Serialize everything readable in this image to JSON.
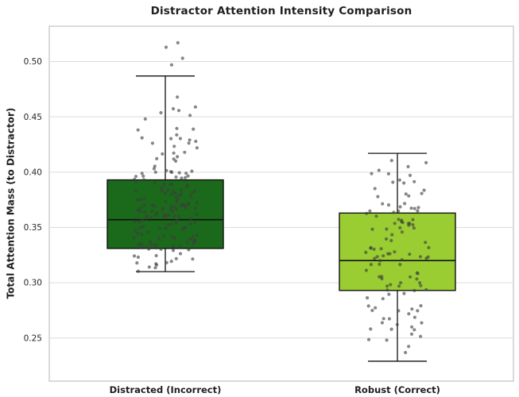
{
  "chart_data": {
    "type": "box",
    "title": "Distractor Attention Intensity Comparison",
    "ylabel": "Total Attention Mass (to Distractor)",
    "xlabel": "",
    "ylim": [
      0.211,
      0.532
    ],
    "yticks": [
      0.25,
      0.3,
      0.35,
      0.4,
      0.45,
      0.5
    ],
    "grid": true,
    "legend": "none",
    "categories": [
      "Distracted (Incorrect)",
      "Robust (Correct)"
    ],
    "series": [
      {
        "name": "Distracted (Incorrect)",
        "box_color": "#1b691b",
        "whisker_low": 0.31,
        "q1": 0.331,
        "median": 0.357,
        "q3": 0.393,
        "whisker_high": 0.487,
        "points": {
          "count": 170,
          "seed": 12345,
          "mean": 0.362,
          "std": 0.044,
          "min": 0.309,
          "max": 0.487,
          "extra": [
            0.517,
            0.513,
            0.503,
            0.497
          ]
        }
      },
      {
        "name": "Robust (Correct)",
        "box_color": "#9acd32",
        "whisker_low": 0.229,
        "q1": 0.293,
        "median": 0.32,
        "q3": 0.363,
        "whisker_high": 0.417,
        "points": {
          "count": 115,
          "seed": 99,
          "mean": 0.322,
          "std": 0.05,
          "min": 0.229,
          "max": 0.417,
          "extra": []
        }
      }
    ],
    "point_style": {
      "color": "#3d3d3d",
      "opacity": 0.62,
      "radius": 2.1
    },
    "grid_color": "#dcdcdc",
    "spine_color": "#b5b5b5",
    "box_edge_color": "#111111"
  }
}
